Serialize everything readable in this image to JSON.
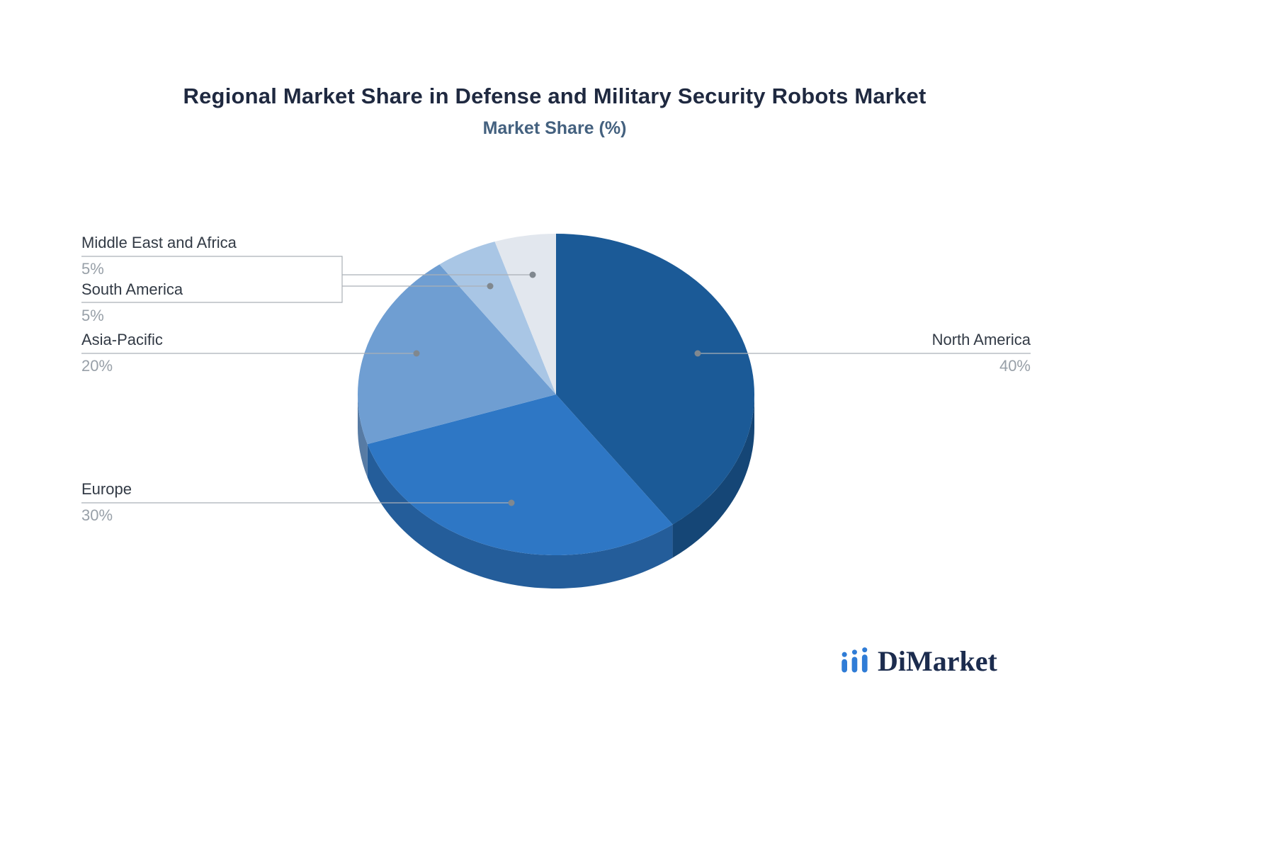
{
  "title": "Regional Market Share in Defense and Military Security Robots Market",
  "subtitle": "Market Share (%)",
  "brand": {
    "name": "DiMarket",
    "icon": "bar-chart-icon",
    "color": "#2f7cd6"
  },
  "chart_data": {
    "type": "pie",
    "title": "Regional Market Share in Defense and Military Security Robots Market",
    "subtitle": "Market Share (%)",
    "unit": "%",
    "effect": "3d",
    "direction": "clockwise",
    "start_angle_deg": 0,
    "labels": [
      "North America",
      "Europe",
      "Asia-Pacific",
      "South America",
      "Middle East and Africa"
    ],
    "values": [
      40,
      30,
      20,
      5,
      5
    ],
    "display_values": [
      "40%",
      "30%",
      "20%",
      "5%",
      "5%"
    ],
    "colors": [
      "#1b5a97",
      "#2e77c5",
      "#6f9ed2",
      "#a9c6e5",
      "#e2e7ee"
    ],
    "legend_position": "none",
    "label_style": "callout-leader-lines"
  }
}
